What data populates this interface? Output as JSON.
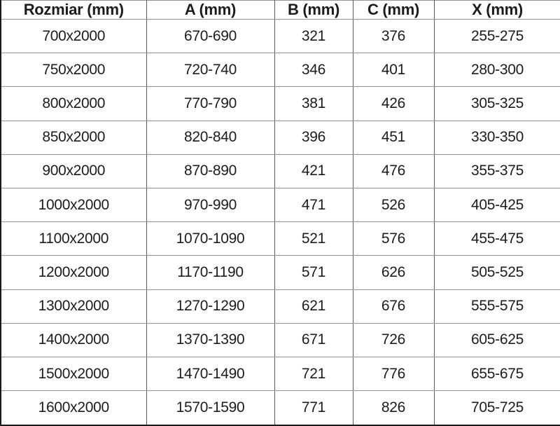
{
  "chart_data": {
    "type": "table",
    "headers": [
      "Rozmiar (mm)",
      "A (mm)",
      "B (mm)",
      "C (mm)",
      "X (mm)"
    ],
    "rows": [
      [
        "700x2000",
        "670-690",
        "321",
        "376",
        "255-275"
      ],
      [
        "750x2000",
        "720-740",
        "346",
        "401",
        "280-300"
      ],
      [
        "800x2000",
        "770-790",
        "381",
        "426",
        "305-325"
      ],
      [
        "850x2000",
        "820-840",
        "396",
        "451",
        "330-350"
      ],
      [
        "900x2000",
        "870-890",
        "421",
        "476",
        "355-375"
      ],
      [
        "1000x2000",
        "970-990",
        "471",
        "526",
        "405-425"
      ],
      [
        "1100x2000",
        "1070-1090",
        "521",
        "576",
        "455-475"
      ],
      [
        "1200x2000",
        "1170-1190",
        "571",
        "626",
        "505-525"
      ],
      [
        "1300x2000",
        "1270-1290",
        "621",
        "676",
        "555-575"
      ],
      [
        "1400x2000",
        "1370-1390",
        "671",
        "726",
        "605-625"
      ],
      [
        "1500x2000",
        "1470-1490",
        "721",
        "776",
        "655-675"
      ],
      [
        "1600x2000",
        "1570-1590",
        "771",
        "826",
        "705-725"
      ]
    ]
  },
  "colors": {
    "text": "#1c1c1c",
    "grid_horizontal": "#959595",
    "grid_vertical": "#5a5a5a",
    "outer_border": "#1a1a1a",
    "background": "#ffffff"
  }
}
